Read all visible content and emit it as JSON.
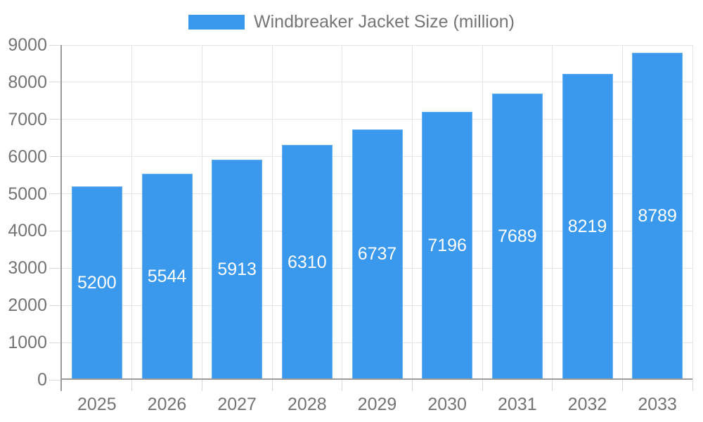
{
  "legend": {
    "label": "Windbreaker Jacket Size (million)"
  },
  "colors": {
    "background": "#FFFFFF",
    "bar_fill": "#3A99EC",
    "bar_border": "#69B1F0",
    "grid_line": "#E4E4E4",
    "tick_mark": "#D8D8D8",
    "axis_line": "#9A9A9A",
    "axis_text": "#737373",
    "legend_text": "#757575",
    "value_label_text": "#FFFFFF"
  },
  "chart_data": {
    "type": "bar",
    "title": "",
    "xlabel": "",
    "ylabel": "",
    "categories": [
      "2025",
      "2026",
      "2027",
      "2028",
      "2029",
      "2030",
      "2031",
      "2032",
      "2033"
    ],
    "series": [
      {
        "name": "Windbreaker Jacket Size (million)",
        "values": [
          5200,
          5544,
          5913,
          6310,
          6737,
          7196,
          7689,
          8219,
          8789
        ]
      }
    ],
    "ylim": [
      0,
      9000
    ],
    "y_ticks": [
      0,
      1000,
      2000,
      3000,
      4000,
      5000,
      6000,
      7000,
      8000,
      9000
    ],
    "grid": true,
    "legend_position": "top-center",
    "value_labels_position": "inside-center"
  }
}
